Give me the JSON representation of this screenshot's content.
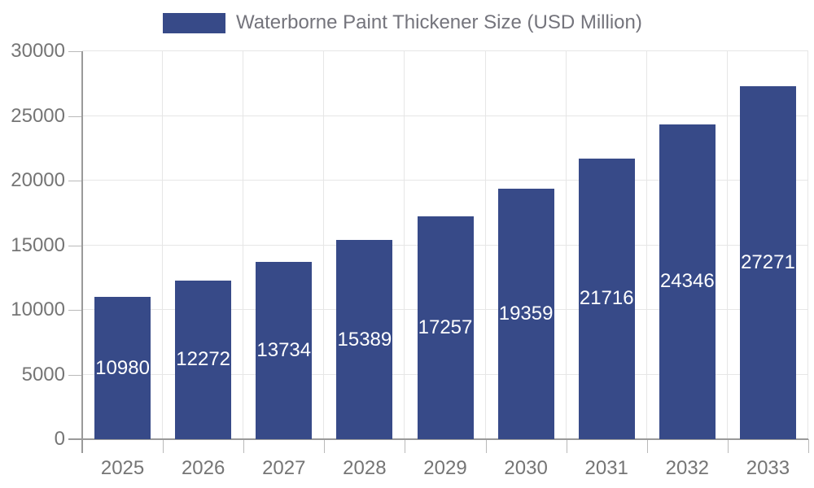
{
  "legend": {
    "label": "Waterborne Paint Thickener Size (USD Million)",
    "swatch_color": "#374a88"
  },
  "chart_data": {
    "type": "bar",
    "title": "Waterborne Paint Thickener Size (USD Million)",
    "categories": [
      "2025",
      "2026",
      "2027",
      "2028",
      "2029",
      "2030",
      "2031",
      "2032",
      "2033"
    ],
    "values": [
      10980,
      12272,
      13734,
      15389,
      17257,
      19359,
      21716,
      24346,
      27271
    ],
    "xlabel": "",
    "ylabel": "",
    "ylim": [
      0,
      30000
    ],
    "ytick_step": 5000,
    "ytick_labels": [
      "0",
      "5000",
      "10000",
      "15000",
      "20000",
      "25000",
      "30000"
    ],
    "bar_color": "#374a88",
    "bar_label_color": "#ffffff",
    "grid": true,
    "gridline_color": "#e6e6e6",
    "axis_color": "#9a9a9a",
    "tick_label_color": "#757575",
    "legend_position": "top"
  }
}
